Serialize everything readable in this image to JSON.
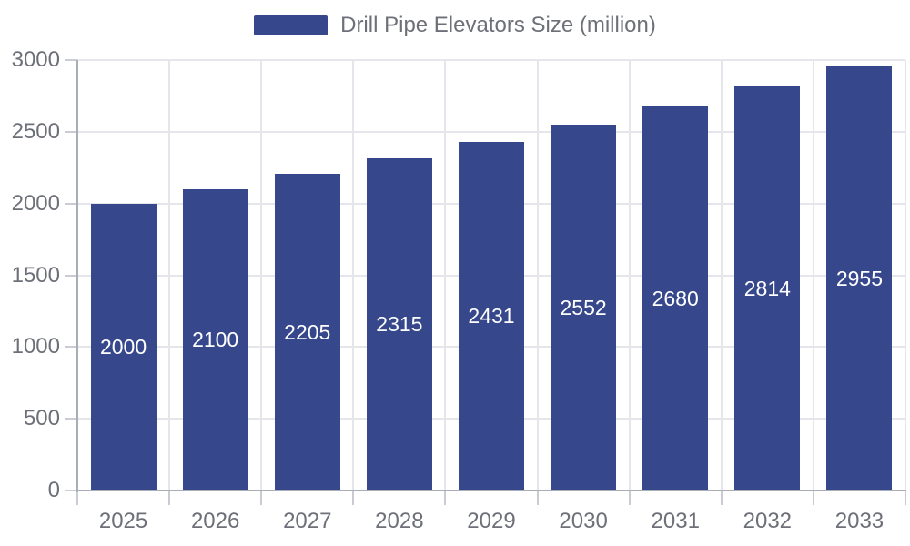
{
  "chart_data": {
    "type": "bar",
    "title": "Drill Pipe Elevators Size (million)",
    "legend": {
      "label": "Drill Pipe Elevators Size (million)",
      "position": "top-center"
    },
    "categories": [
      "2025",
      "2026",
      "2027",
      "2028",
      "2029",
      "2030",
      "2031",
      "2032",
      "2033"
    ],
    "series": [
      {
        "name": "Drill Pipe Elevators Size (million)",
        "values": [
          2000,
          2100,
          2205,
          2315,
          2431,
          2552,
          2680,
          2814,
          2955
        ]
      }
    ],
    "xlabel": "",
    "ylabel": "",
    "ylim": [
      0,
      3000
    ],
    "ytick_step": 500,
    "ytick_labels": [
      "0",
      "500",
      "1000",
      "1500",
      "2000",
      "2500",
      "3000"
    ],
    "grid": true,
    "bar_labels_visible": true,
    "bar_label_position": "inside-center",
    "colors": {
      "bar": "#36478C",
      "bar_label": "#FFFFFF",
      "axis_label": "#6E7079",
      "legend_text": "#6E7079",
      "axis_line": "#A9ADB5",
      "tick_line": "#C9CCD2",
      "grid_line": "#E4E6EB",
      "background": "#FFFFFF"
    }
  }
}
